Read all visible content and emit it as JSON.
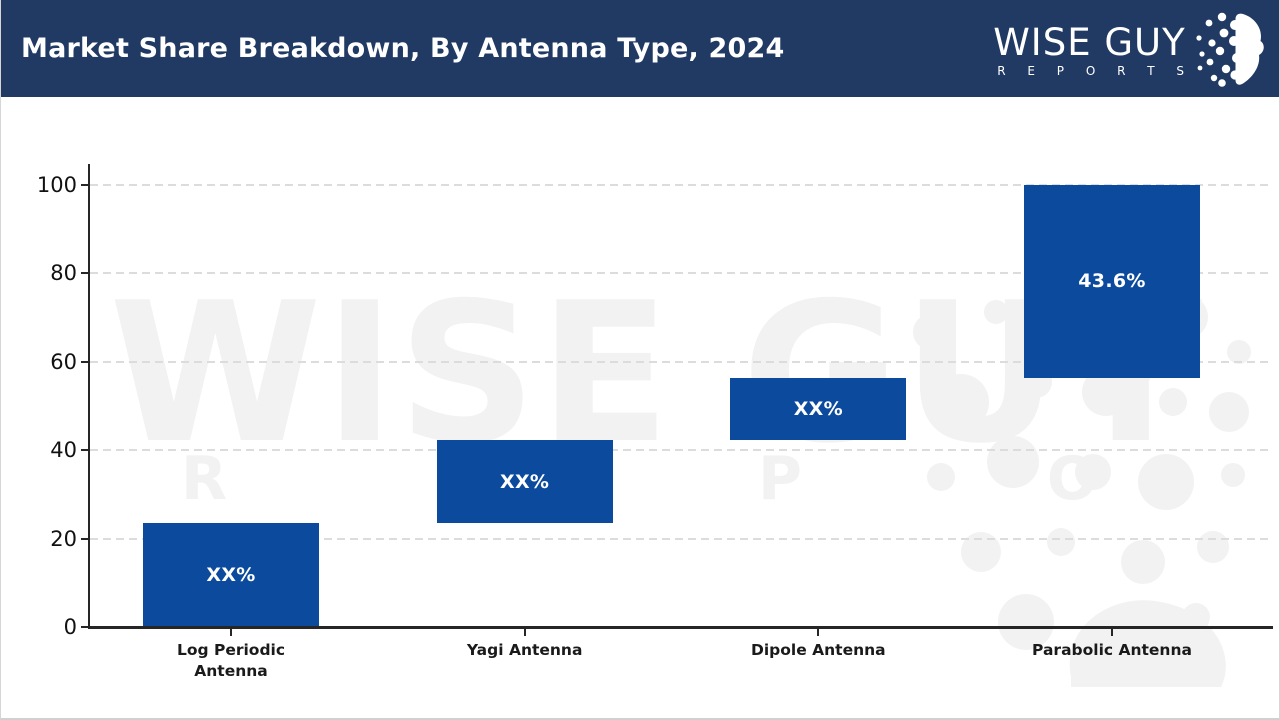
{
  "header": {
    "title": "Market Share Breakdown, By Antenna Type, 2024",
    "logo": {
      "line1": "WISE GUY",
      "line2": "R E P O R T S",
      "face_icon": "dotted-head-profile"
    }
  },
  "watermark": {
    "line1": "WISE GUY",
    "line2": "R E P O R T S"
  },
  "colors": {
    "header_bg": "#203a64",
    "bar": "#0c4a9e",
    "grid": "#dcdcdc",
    "axis": "#262626",
    "watermark": "#f2f2f2",
    "bar_label_text": "#ffffff",
    "tick_text": "#111111"
  },
  "chart_data": {
    "type": "bar",
    "subtype": "waterfall",
    "title": "Market Share Breakdown, By Antenna Type, 2024",
    "xlabel": "",
    "ylabel": "",
    "ylim": [
      0,
      100
    ],
    "yticks": [
      0,
      20,
      40,
      60,
      80,
      100
    ],
    "grid": "horizontal-dashed",
    "legend": "none",
    "categories": [
      "Log Periodic\nAntenna",
      "Yagi Antenna",
      "Dipole Antenna",
      "Parabolic Antenna"
    ],
    "segments": [
      {
        "category": "Log Periodic\nAntenna",
        "start": 0,
        "end": 23.5,
        "value_estimate": 23.5,
        "label": "XX%"
      },
      {
        "category": "Yagi Antenna",
        "start": 23.5,
        "end": 42.3,
        "value_estimate": 18.8,
        "label": "XX%"
      },
      {
        "category": "Dipole Antenna",
        "start": 42.3,
        "end": 56.4,
        "value_estimate": 14.1,
        "label": "XX%"
      },
      {
        "category": "Parabolic Antenna",
        "start": 56.4,
        "end": 100,
        "value_estimate": 43.6,
        "label": "43.6%"
      }
    ]
  }
}
